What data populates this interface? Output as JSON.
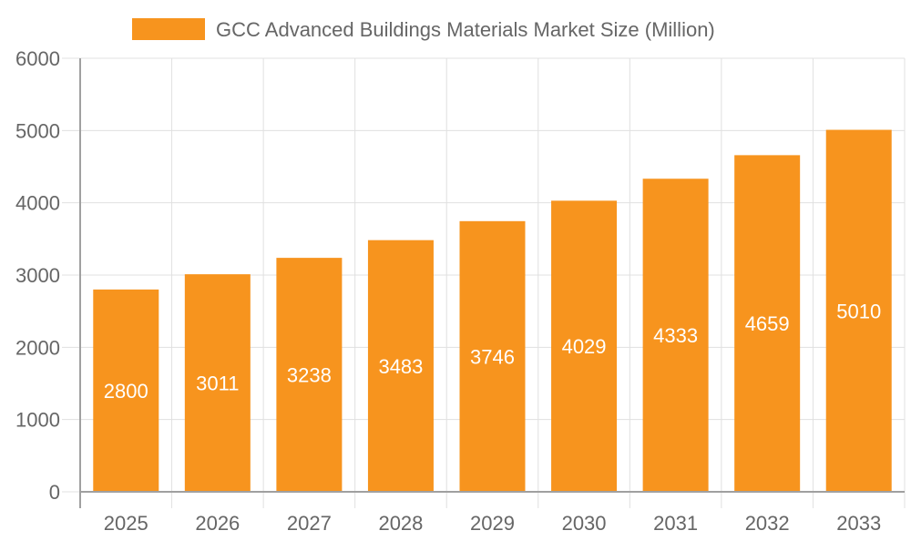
{
  "chart_data": {
    "type": "bar",
    "categories": [
      "2025",
      "2026",
      "2027",
      "2028",
      "2029",
      "2030",
      "2031",
      "2032",
      "2033"
    ],
    "series": [
      {
        "name": "GCC Advanced Buildings Materials Market  Size (Million)",
        "values": [
          2800,
          3011,
          3238,
          3483,
          3746,
          4029,
          4333,
          4659,
          5010
        ]
      }
    ],
    "yticks": [
      "0",
      "1000",
      "2000",
      "3000",
      "4000",
      "5000",
      "6000"
    ],
    "ylim": [
      0,
      6000
    ],
    "grid": true,
    "legend": "top",
    "data_labels": true,
    "colors": {
      "bar": "#F7941E",
      "grid": "#E0E0E0",
      "axis": "#A0A0A0",
      "text": "#666666",
      "label": "#FFFFFF"
    }
  }
}
